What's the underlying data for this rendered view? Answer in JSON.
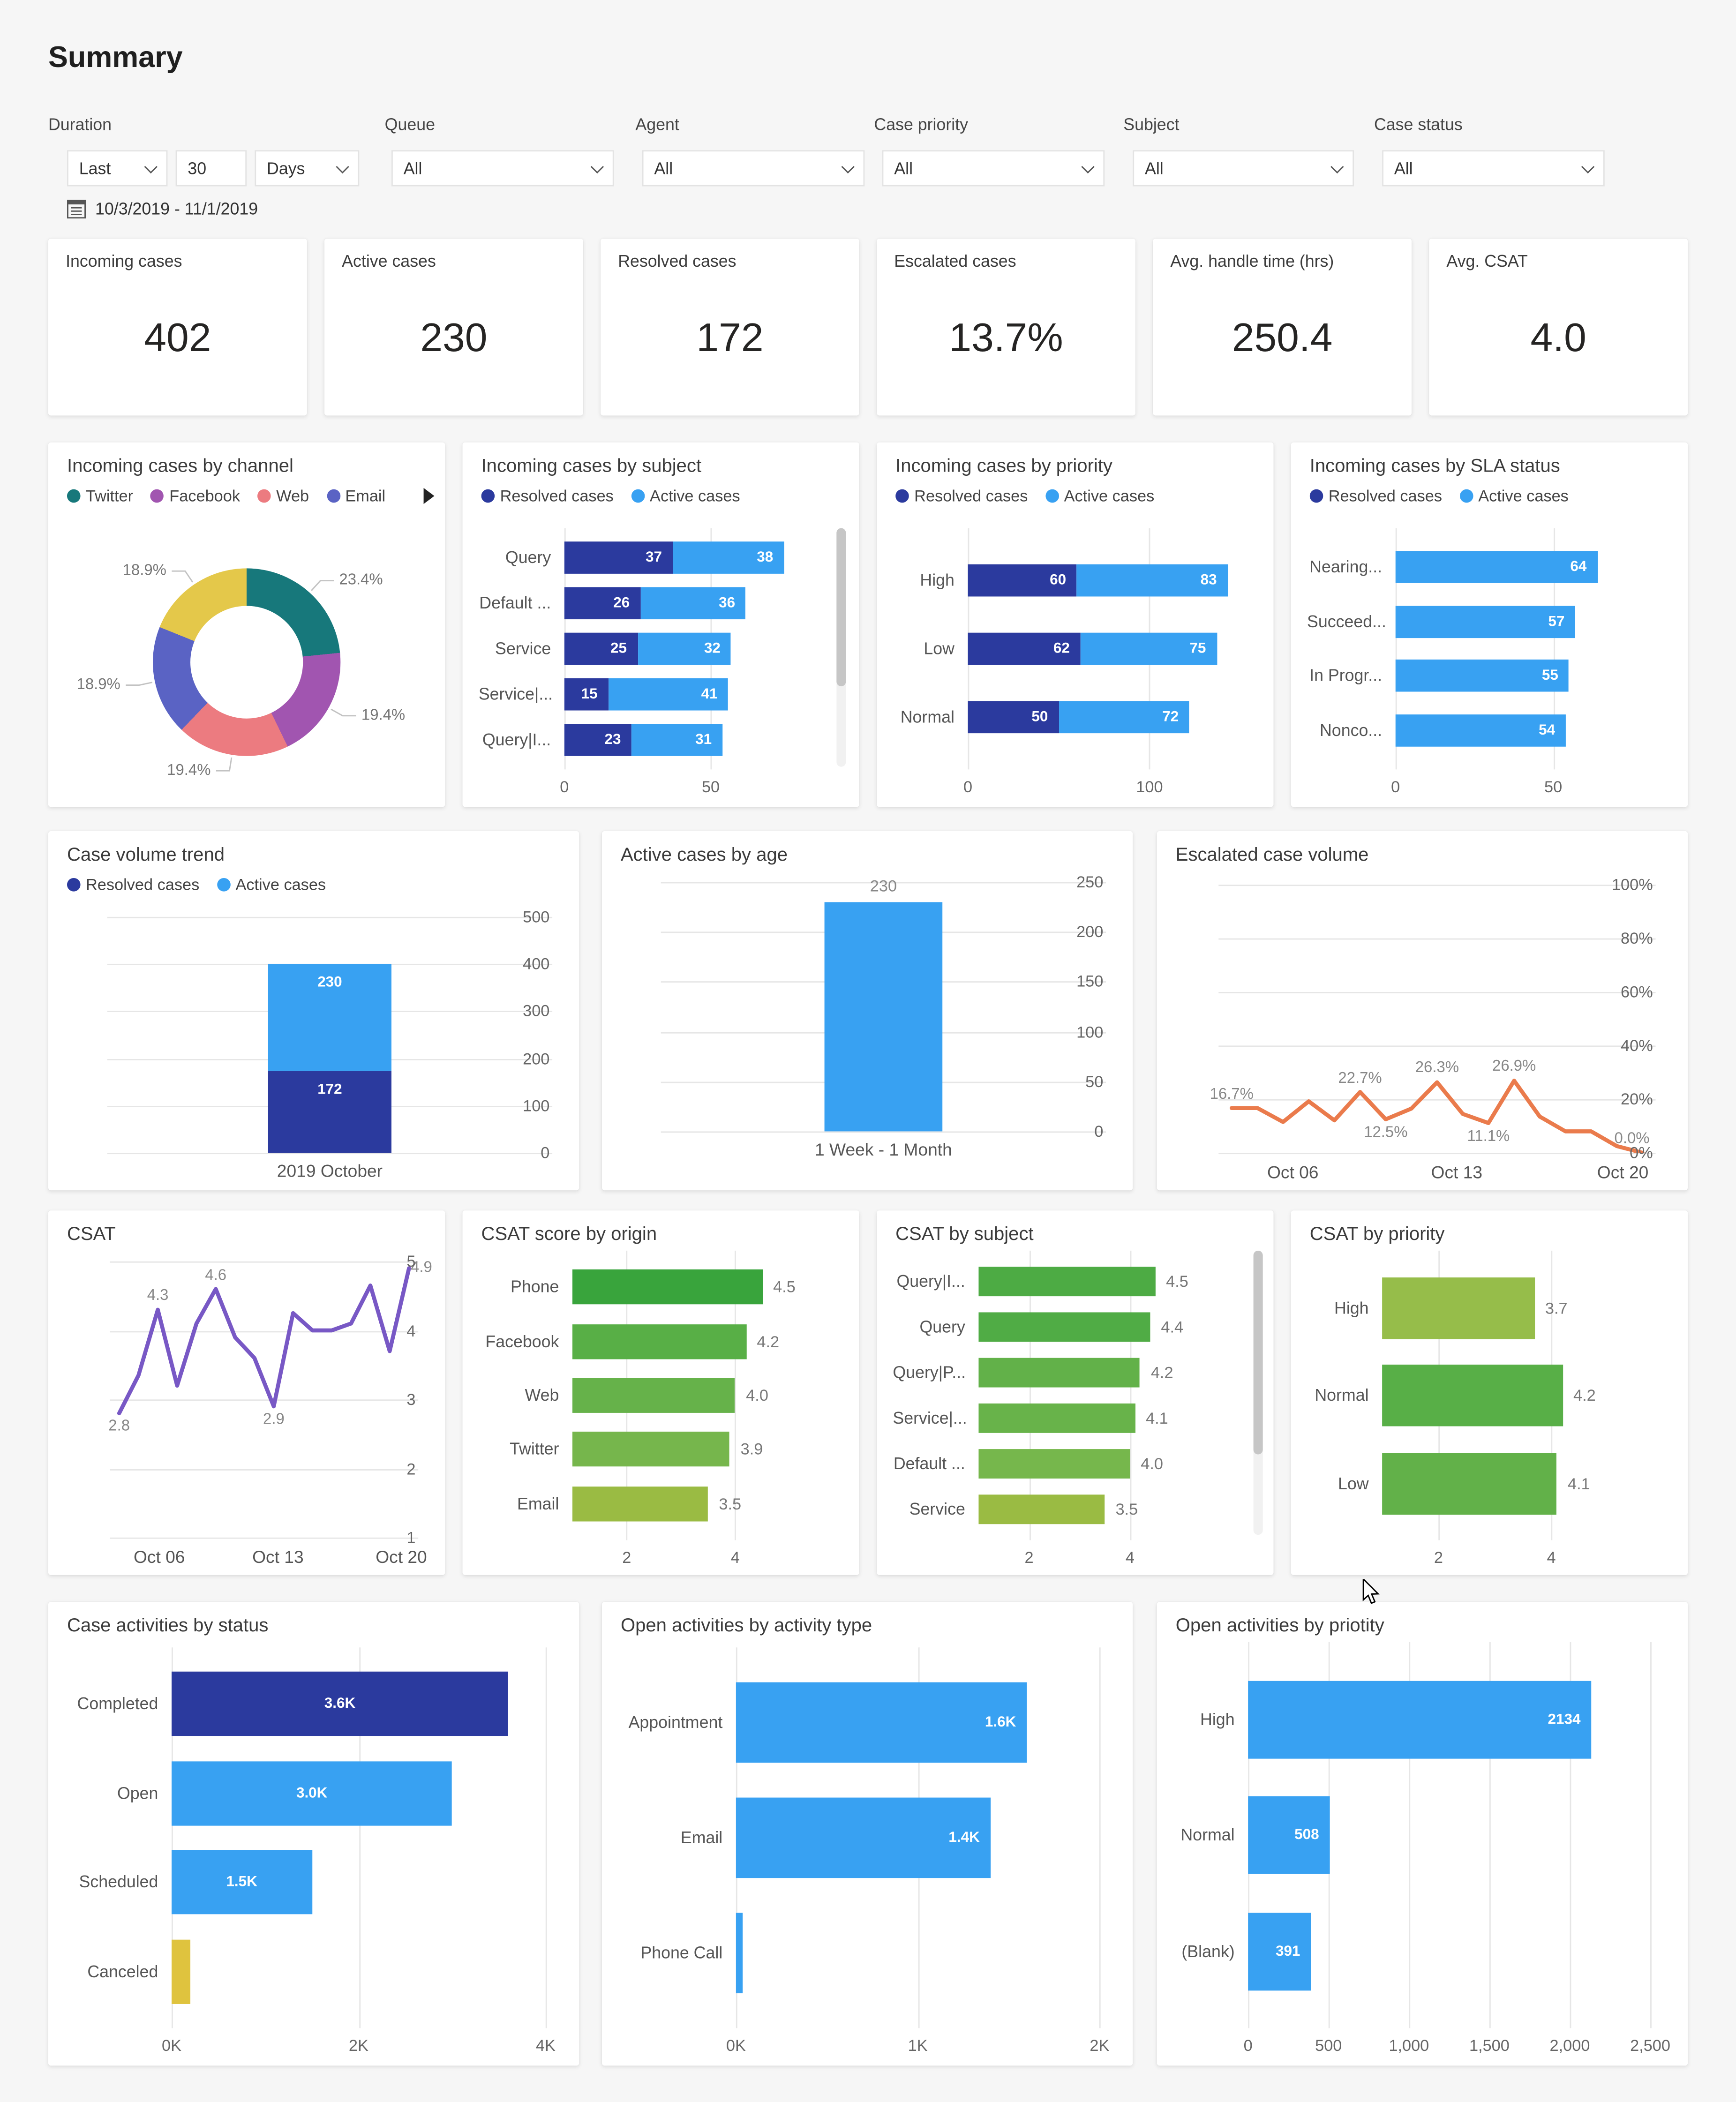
{
  "title": "Summary",
  "filters": {
    "duration": {
      "label": "Duration",
      "range_mode": "Last",
      "range_value": "30",
      "range_unit": "Days"
    },
    "queue": {
      "label": "Queue",
      "value": "All"
    },
    "agent": {
      "label": "Agent",
      "value": "All"
    },
    "case_priority": {
      "label": "Case priority",
      "value": "All"
    },
    "subject": {
      "label": "Subject",
      "value": "All"
    },
    "case_status": {
      "label": "Case status",
      "value": "All"
    },
    "date_range": "10/3/2019 - 11/1/2019"
  },
  "kpis": [
    {
      "label": "Incoming cases",
      "value": "402"
    },
    {
      "label": "Active cases",
      "value": "230"
    },
    {
      "label": "Resolved cases",
      "value": "172"
    },
    {
      "label": "Escalated cases",
      "value": "13.7%"
    },
    {
      "label": "Avg. handle time (hrs)",
      "value": "250.4"
    },
    {
      "label": "Avg. CSAT",
      "value": "4.0"
    }
  ],
  "colors": {
    "resolved": "#2B3A9E",
    "active": "#38A1F2",
    "teal": "#17787B",
    "purple": "#A155B0",
    "pink": "#EC7B80",
    "indigo": "#5A63C4",
    "yellow": "#E4C84A",
    "canceled_yellow": "#DFC33E",
    "orange_line": "#EA7B4C",
    "purple_line": "#7858C5"
  },
  "chart_data": [
    {
      "type": "pie",
      "title": "Incoming cases by channel",
      "legend_overflow": true,
      "legend": [
        {
          "label": "Twitter",
          "color": "#17787B"
        },
        {
          "label": "Facebook",
          "color": "#A155B0"
        },
        {
          "label": "Web",
          "color": "#EC7B80"
        },
        {
          "label": "Email",
          "color": "#5A63C4"
        }
      ],
      "slices": [
        {
          "label": "Twitter",
          "value": 23.4,
          "color": "#17787B"
        },
        {
          "label": "Facebook",
          "value": 19.4,
          "color": "#A155B0"
        },
        {
          "label": "Web",
          "value": 19.4,
          "color": "#EC7B80"
        },
        {
          "label": "Email",
          "value": 18.9,
          "color": "#5A63C4"
        },
        {
          "label": "",
          "value": 18.9,
          "color": "#E4C84A"
        }
      ],
      "slice_labels": [
        "23.4%",
        "19.4%",
        "19.4%",
        "18.9%",
        "18.9%"
      ]
    },
    {
      "type": "stackedbarh",
      "title": "Incoming cases by subject",
      "legend": [
        {
          "label": "Resolved cases",
          "color": "#2B3A9E"
        },
        {
          "label": "Active cases",
          "color": "#38A1F2"
        }
      ],
      "categories": [
        "Query",
        "Default ...",
        "Service",
        "Service|...",
        "Query|I..."
      ],
      "series": [
        {
          "name": "Resolved cases",
          "color": "#2B3A9E",
          "values": [
            37,
            26,
            25,
            15,
            23
          ]
        },
        {
          "name": "Active cases",
          "color": "#38A1F2",
          "values": [
            38,
            36,
            32,
            41,
            31
          ]
        }
      ],
      "xmax": 87,
      "ticks": [
        {
          "v": 0,
          "label": "0"
        },
        {
          "v": 50,
          "label": "50"
        }
      ],
      "scrollbar": true
    },
    {
      "type": "stackedbarh",
      "title": "Incoming cases by priority",
      "legend": [
        {
          "label": "Resolved cases",
          "color": "#2B3A9E"
        },
        {
          "label": "Active cases",
          "color": "#38A1F2"
        }
      ],
      "categories": [
        "High",
        "Low",
        "Normal"
      ],
      "series": [
        {
          "name": "Resolved cases",
          "color": "#2B3A9E",
          "values": [
            60,
            62,
            50
          ]
        },
        {
          "name": "Active cases",
          "color": "#38A1F2",
          "values": [
            83,
            75,
            72
          ]
        }
      ],
      "xmax": 155,
      "ticks": [
        {
          "v": 0,
          "label": "0"
        },
        {
          "v": 100,
          "label": "100"
        }
      ]
    },
    {
      "type": "barh",
      "title": "Incoming cases by SLA status",
      "legend": [
        {
          "label": "Resolved cases",
          "color": "#2B3A9E"
        },
        {
          "label": "Active cases",
          "color": "#38A1F2"
        }
      ],
      "categories": [
        "Nearing...",
        "Succeed...",
        "In Progr...",
        "Nonco..."
      ],
      "values": [
        64,
        57,
        55,
        54
      ],
      "color": "#38A1F2",
      "value_labels": [
        "64",
        "57",
        "55",
        "54"
      ],
      "label_pos": "inside-right",
      "xmax": 85,
      "ticks": [
        {
          "v": 0,
          "label": "0"
        },
        {
          "v": 50,
          "label": "50"
        }
      ]
    },
    {
      "type": "stackedcol",
      "title": "Case volume trend",
      "legend": [
        {
          "label": "Resolved cases",
          "color": "#2B3A9E"
        },
        {
          "label": "Active cases",
          "color": "#38A1F2"
        }
      ],
      "categories": [
        "2019 October"
      ],
      "series": [
        {
          "name": "Resolved cases",
          "color": "#2B3A9E",
          "value": 172,
          "label": "172"
        },
        {
          "name": "Active cases",
          "color": "#38A1F2",
          "value": 230,
          "label": "230"
        }
      ],
      "ymax": 500,
      "yticks": [
        500,
        400,
        300,
        200,
        100,
        0
      ]
    },
    {
      "type": "col",
      "title": "Active cases by age",
      "categories": [
        "1 Week - 1 Month"
      ],
      "value": 230,
      "value_label": "230",
      "color": "#38A1F2",
      "ymax": 250,
      "yticks": [
        250,
        200,
        150,
        100,
        50,
        0
      ]
    },
    {
      "type": "line",
      "title": "Escalated case volume",
      "color": "#EA7B4C",
      "ymin": 0,
      "ymax": 100,
      "yticks": [
        "100%",
        "80%",
        "60%",
        "40%",
        "20%",
        "0%"
      ],
      "values": [
        16.7,
        16.7,
        11.5,
        19.2,
        12.1,
        22.7,
        12.5,
        16.5,
        26.3,
        14.5,
        11.1,
        26.9,
        13.5,
        8.0,
        8.0,
        2.5,
        0.0
      ],
      "point_labels": [
        {
          "i": 0,
          "text": "16.7%",
          "pos": "above"
        },
        {
          "i": 5,
          "text": "22.7%",
          "pos": "above"
        },
        {
          "i": 6,
          "text": "12.5%",
          "pos": "below"
        },
        {
          "i": 8,
          "text": "26.3%",
          "pos": "above"
        },
        {
          "i": 10,
          "text": "11.1%",
          "pos": "below"
        },
        {
          "i": 11,
          "text": "26.9%",
          "pos": "above"
        },
        {
          "i": 16,
          "text": "0.0%",
          "pos": "endabove"
        }
      ],
      "xticks": [
        {
          "pos": 0.17,
          "label": "Oct 06"
        },
        {
          "pos": 0.545,
          "label": "Oct 13"
        },
        {
          "pos": 0.925,
          "label": "Oct 20"
        }
      ]
    },
    {
      "type": "line",
      "title": "CSAT",
      "color": "#7858C5",
      "ymin": 1,
      "ymax": 5,
      "yticks": [
        "5",
        "4",
        "3",
        "2",
        "1"
      ],
      "values": [
        2.8,
        3.35,
        4.3,
        3.2,
        4.1,
        4.6,
        3.9,
        3.6,
        2.9,
        4.25,
        4.0,
        4.0,
        4.1,
        4.65,
        3.7,
        4.9
      ],
      "point_labels": [
        {
          "i": 0,
          "text": "2.8",
          "pos": "below"
        },
        {
          "i": 2,
          "text": "4.3",
          "pos": "above"
        },
        {
          "i": 5,
          "text": "4.6",
          "pos": "above"
        },
        {
          "i": 8,
          "text": "2.9",
          "pos": "below"
        },
        {
          "i": 15,
          "text": "4.9",
          "pos": "right"
        }
      ],
      "xticks": [
        {
          "pos": 0.16,
          "label": "Oct 06"
        },
        {
          "pos": 0.545,
          "label": "Oct 13"
        },
        {
          "pos": 0.945,
          "label": "Oct 20"
        }
      ]
    },
    {
      "type": "barh",
      "title": "CSAT score by origin",
      "categories": [
        "Phone",
        "Facebook",
        "Web",
        "Twitter",
        "Email"
      ],
      "values": [
        4.5,
        4.2,
        4.0,
        3.9,
        3.5
      ],
      "colors": [
        "#39A43C",
        "#58AF46",
        "#66B24A",
        "#76B64C",
        "#9ABB43"
      ],
      "value_labels": [
        "4.5",
        "4.2",
        "4.0",
        "3.9",
        "3.5"
      ],
      "label_pos": "outside",
      "base": 1,
      "xmax": 5.05,
      "ticks": [
        {
          "v": 2,
          "label": "2"
        },
        {
          "v": 4,
          "label": "4"
        }
      ]
    },
    {
      "type": "barh",
      "title": "CSAT by subject",
      "categories": [
        "Query|I...",
        "Query",
        "Query|P...",
        "Service|...",
        "Default ...",
        "Service"
      ],
      "values": [
        4.5,
        4.4,
        4.2,
        4.1,
        4.0,
        3.5
      ],
      "colors": [
        "#4DAB44",
        "#50AC45",
        "#62B149",
        "#68B34A",
        "#76B74C",
        "#9ABB43"
      ],
      "value_labels": [
        "4.5",
        "4.4",
        "4.2",
        "4.1",
        "4.0",
        "3.5"
      ],
      "label_pos": "outside",
      "base": 1,
      "xmax": 5.09,
      "ticks": [
        {
          "v": 2,
          "label": "2"
        },
        {
          "v": 4,
          "label": "4"
        }
      ],
      "scrollbar": true
    },
    {
      "type": "barh",
      "title": "CSAT by priority",
      "categories": [
        "High",
        "Normal",
        "Low"
      ],
      "values": [
        3.7,
        4.2,
        4.1
      ],
      "colors": [
        "#96BD4A",
        "#58AF47",
        "#62B149"
      ],
      "value_labels": [
        "3.7",
        "4.2",
        "4.1"
      ],
      "label_pos": "outside",
      "base": 1,
      "xmax": 5.04,
      "ticks": [
        {
          "v": 2,
          "label": "2"
        },
        {
          "v": 4,
          "label": "4"
        }
      ]
    },
    {
      "type": "barh",
      "title": "Case activities by status",
      "categories": [
        "Completed",
        "Open",
        "Scheduled",
        "Canceled"
      ],
      "values": [
        3.6,
        3.0,
        1.5,
        0.2
      ],
      "colors": [
        "#2B3A9E",
        "#38A1F2",
        "#38A1F2",
        "#DFC33E"
      ],
      "value_labels": [
        "3.6K",
        "3.0K",
        "1.5K",
        ""
      ],
      "label_pos": "center",
      "xmax": 4.1,
      "ticks": [
        {
          "v": 0,
          "label": "0K"
        },
        {
          "v": 2,
          "label": "2K"
        },
        {
          "v": 4,
          "label": "4K"
        }
      ]
    },
    {
      "type": "barh",
      "title": "Open activities by activity type",
      "categories": [
        "Appointment",
        "Email",
        "Phone Call"
      ],
      "values": [
        1.6,
        1.4,
        0.04
      ],
      "colors": [
        "#38A1F2",
        "#38A1F2",
        "#38A1F2"
      ],
      "value_labels": [
        "1.6K",
        "1.4K",
        ""
      ],
      "label_pos": "inside-right",
      "xmax": 2.05,
      "ticks": [
        {
          "v": 0,
          "label": "0K"
        },
        {
          "v": 1,
          "label": "1K"
        },
        {
          "v": 2,
          "label": "2K"
        }
      ]
    },
    {
      "type": "barh",
      "title": "Open activities by priotity",
      "categories": [
        "High",
        "Normal",
        "(Blank)"
      ],
      "values": [
        2134,
        508,
        391
      ],
      "colors": [
        "#38A1F2",
        "#38A1F2",
        "#38A1F2"
      ],
      "value_labels": [
        "2134",
        "508",
        "391"
      ],
      "label_pos": "inside-right",
      "xmax": 2550,
      "ticks": [
        {
          "v": 0,
          "label": "0"
        },
        {
          "v": 500,
          "label": "500"
        },
        {
          "v": 1000,
          "label": "1,000"
        },
        {
          "v": 1500,
          "label": "1,500"
        },
        {
          "v": 2000,
          "label": "2,000"
        },
        {
          "v": 2500,
          "label": "2,500"
        }
      ]
    }
  ]
}
